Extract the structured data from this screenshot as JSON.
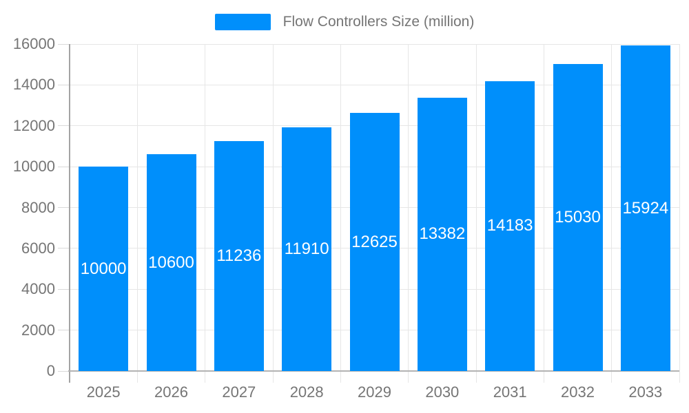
{
  "legend": {
    "label": "Flow Controllers Size (million)",
    "swatch_color": "#008FFB"
  },
  "chart_data": {
    "type": "bar",
    "title": "Flow Controllers Size (million)",
    "series": [
      {
        "name": "Flow Controllers Size (million)",
        "values": [
          10000,
          10600,
          11236,
          11910,
          12625,
          13382,
          14183,
          15030,
          15924
        ]
      }
    ],
    "categories": [
      "2025",
      "2026",
      "2027",
      "2028",
      "2029",
      "2030",
      "2031",
      "2032",
      "2033"
    ],
    "data_labels": [
      "10000",
      "10600",
      "11236",
      "11910",
      "12625",
      "13382",
      "14183",
      "15030",
      "15924"
    ],
    "xlabel": "",
    "ylabel": "",
    "ylim": [
      0,
      16000
    ],
    "ytick_step": 2000,
    "yticks": [
      0,
      2000,
      4000,
      6000,
      8000,
      10000,
      12000,
      14000,
      16000
    ],
    "grid": true,
    "legend_position": "top",
    "colors": {
      "bar": "#008FFB",
      "gridline": "#e6e6e6",
      "tick": "#d9d9d9",
      "y_axis_line": "#a3a3a3",
      "x_axis_line": "#b3b3b3",
      "axis_label": "#757575",
      "bar_label": "#ffffff",
      "background": "#ffffff"
    }
  }
}
